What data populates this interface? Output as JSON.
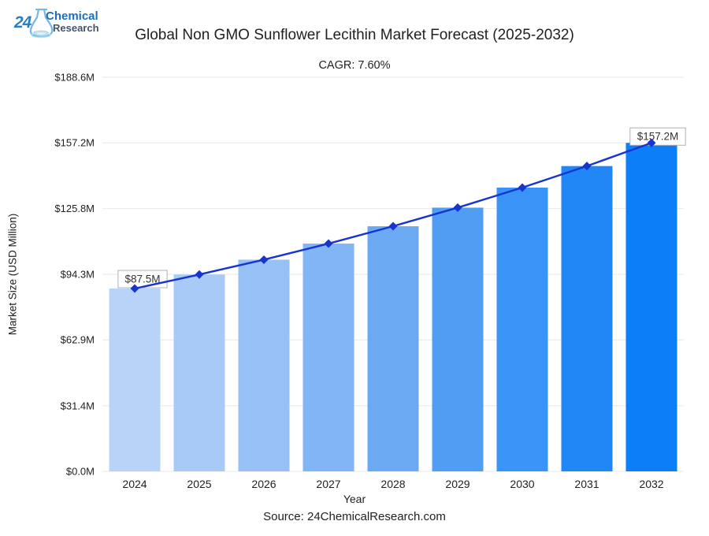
{
  "logo": {
    "number": "24",
    "line1": "Chemical",
    "line2": "Research"
  },
  "chart_data": {
    "type": "bar",
    "overlay": "line",
    "title": "Global Non GMO Sunflower Lecithin Market Forecast (2025-2032)",
    "subtitle": "CAGR: 7.60%",
    "xlabel": "Year",
    "ylabel": "Market Size (USD Million)",
    "categories": [
      "2024",
      "2025",
      "2026",
      "2027",
      "2028",
      "2029",
      "2030",
      "2031",
      "2032"
    ],
    "values": [
      87.5,
      94.2,
      101.3,
      109.0,
      117.3,
      126.2,
      135.8,
      146.1,
      157.2
    ],
    "ylim": [
      0,
      188.6
    ],
    "yticks": [
      {
        "value": 0.0,
        "label": "$0.0M"
      },
      {
        "value": 31.4,
        "label": "$31.4M"
      },
      {
        "value": 62.9,
        "label": "$62.9M"
      },
      {
        "value": 94.3,
        "label": "$94.3M"
      },
      {
        "value": 125.8,
        "label": "$125.8M"
      },
      {
        "value": 157.2,
        "label": "$157.2M"
      },
      {
        "value": 188.6,
        "label": "$188.6M"
      }
    ],
    "annotations": [
      {
        "category": "2024",
        "label": "$87.5M"
      },
      {
        "category": "2032",
        "label": "$157.2M"
      }
    ],
    "grid": true,
    "legend": "none",
    "bar_colors": [
      "#b9d2f8",
      "#a8caf7",
      "#97c1f6",
      "#82b5f5",
      "#6baaf3",
      "#519df4",
      "#3a93f6",
      "#2187f7",
      "#0b7ef8"
    ],
    "line_color": "#1634cf",
    "grid_color": "#ededed",
    "text_color": "#212121",
    "annotation_border": "#b0b0b0"
  },
  "footer": {
    "source": "Source: 24ChemicalResearch.com"
  }
}
